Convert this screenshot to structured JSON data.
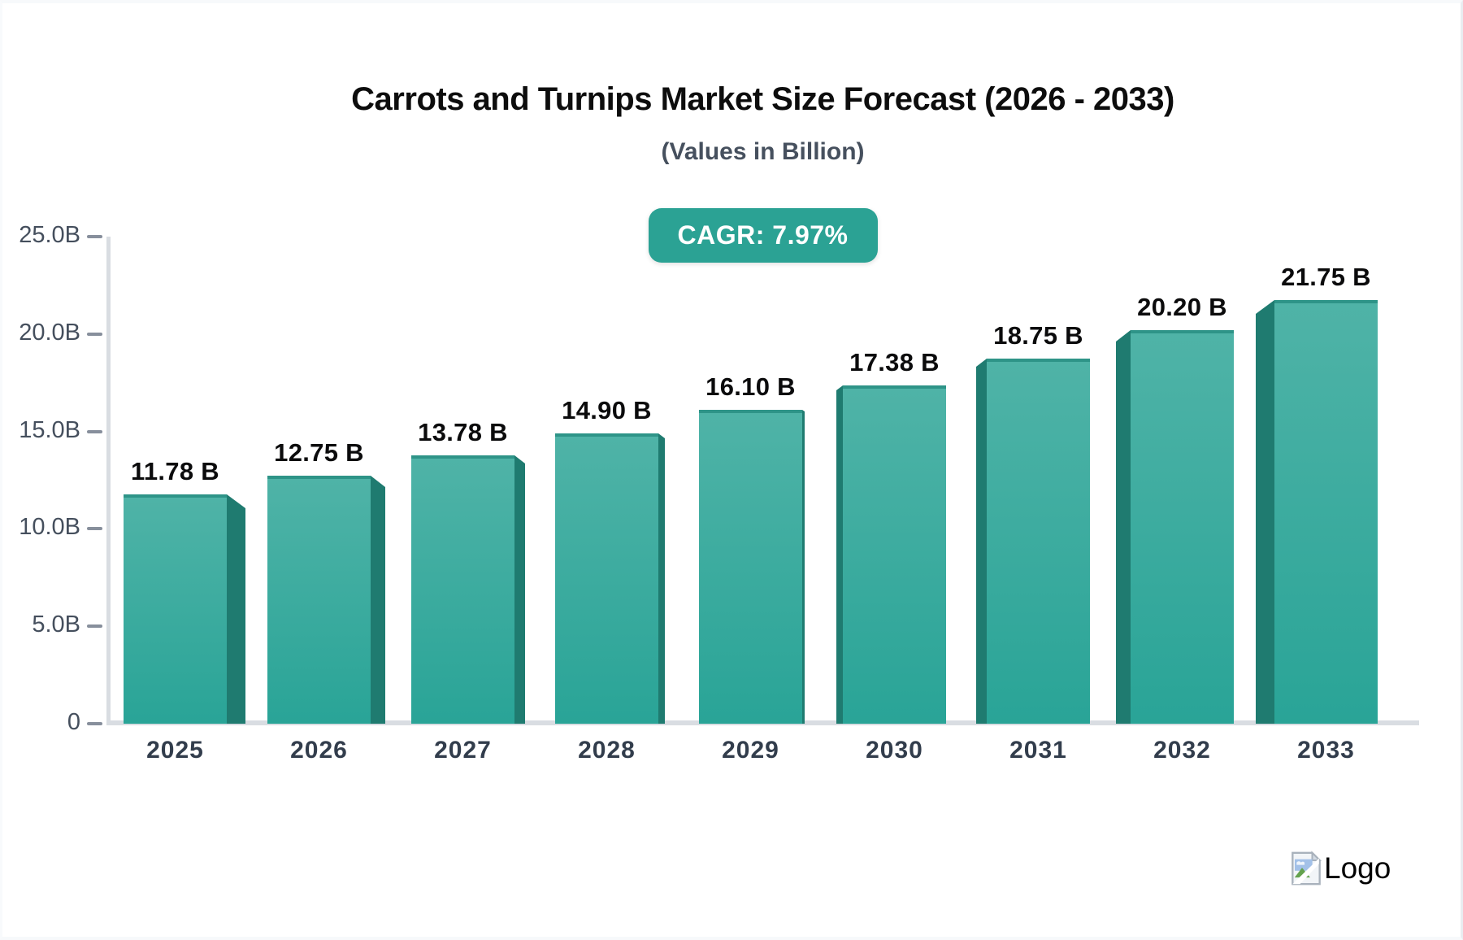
{
  "page": {
    "logo_alt": "Logo"
  },
  "chart_data": {
    "type": "bar",
    "title": "Carrots and Turnips Market Size Forecast (2026 - 2033)",
    "subtitle": "(Values in Billion)",
    "badge_label": "CAGR: 7.97%",
    "categories": [
      "2025",
      "2026",
      "2027",
      "2028",
      "2029",
      "2030",
      "2031",
      "2032",
      "2033"
    ],
    "values": [
      11.78,
      12.75,
      13.78,
      14.9,
      16.1,
      17.38,
      18.75,
      20.2,
      21.75
    ],
    "value_labels": [
      "11.78 B",
      "12.75 B",
      "13.78 B",
      "14.90 B",
      "16.10 B",
      "17.38 B",
      "18.75 B",
      "20.20 B",
      "21.75 B"
    ],
    "unit": "Billion",
    "ylim": [
      0,
      25
    ],
    "yticks": [
      {
        "value": 25,
        "label": "25.0B"
      },
      {
        "value": 20,
        "label": "20.0B"
      },
      {
        "value": 15,
        "label": "15.0B"
      },
      {
        "value": 10,
        "label": "10.0B"
      },
      {
        "value": 5,
        "label": "5.0B"
      },
      {
        "value": 0,
        "label": "0"
      }
    ],
    "grid": false,
    "legend": null,
    "layout_hints": {
      "bar_style": "3d-perspective",
      "side_flips_at_center": true
    },
    "colors": {
      "bar_top": "#4FB3A7",
      "bar_bottom": "#29A497",
      "bar_edge": "#2E9488",
      "bar_side": "#1F7B70",
      "badge_bg": "#2BA294",
      "axis_line": "#D9DDE2",
      "tick_dash": "#878F9C",
      "tick_text": "#454F5D",
      "xlabel_text": "#323D4C",
      "title_text": "#0D0D0D",
      "subtitle_text": "#46505E"
    }
  }
}
